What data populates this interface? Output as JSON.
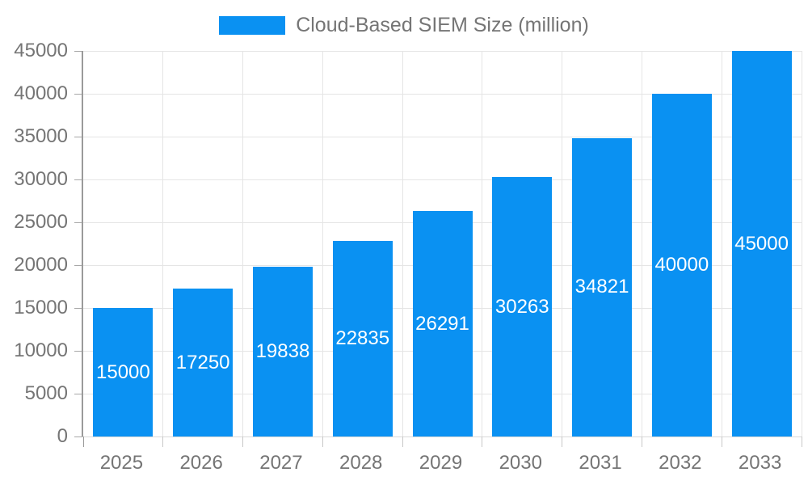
{
  "legend": {
    "label": "Cloud-Based SIEM Size (million)"
  },
  "chart_data": {
    "type": "bar",
    "title": "Cloud-Based SIEM Size (million)",
    "categories": [
      "2025",
      "2026",
      "2027",
      "2028",
      "2029",
      "2030",
      "2031",
      "2032",
      "2033"
    ],
    "values": [
      15000,
      17250,
      19838,
      22835,
      26291,
      30263,
      34821,
      40000,
      45000
    ],
    "xlabel": "",
    "ylabel": "",
    "ylim": [
      0,
      45000
    ],
    "ytick_step": 5000,
    "ytick_labels": [
      "0",
      "5000",
      "10000",
      "15000",
      "20000",
      "25000",
      "30000",
      "35000",
      "40000",
      "45000"
    ],
    "grid": true,
    "legend_position": "top-center",
    "bar_color": "#0a91f2",
    "bar_label_color": "#ffffff",
    "axis_text_color": "#757575",
    "axis_line_color": "#9a9a9a",
    "grid_color": "#e5e5e5"
  }
}
